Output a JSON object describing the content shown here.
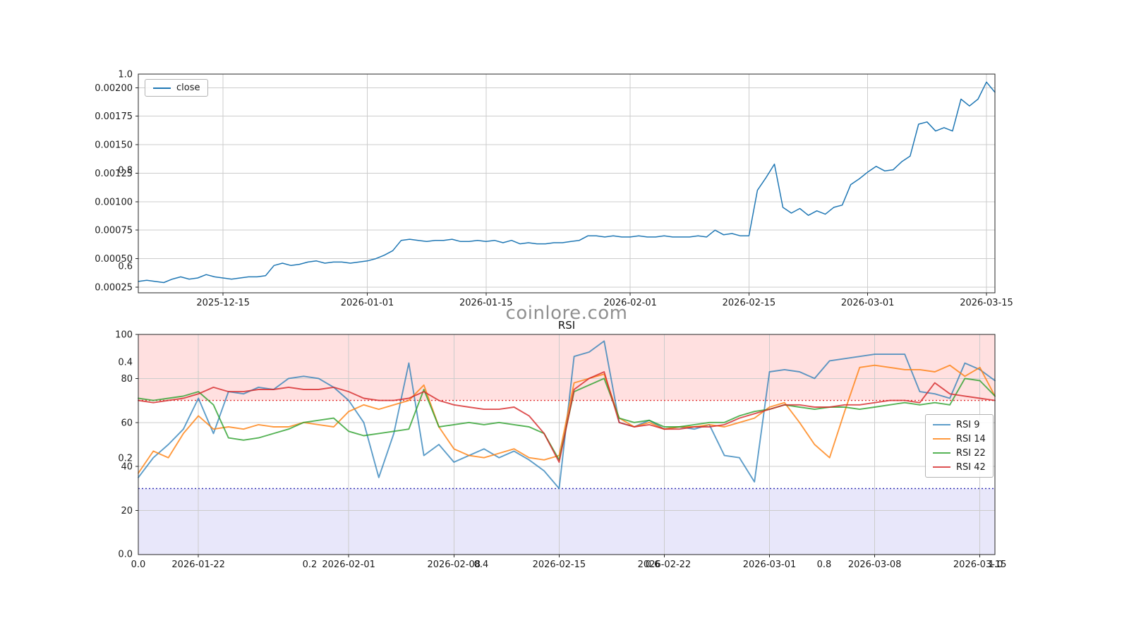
{
  "watermark": "coinlore.com",
  "ghost_axis": {
    "yticks": [
      "1.0",
      "0.8",
      "0.6",
      "0.4",
      "0.2",
      "0.0"
    ],
    "xticks": [
      "0.0",
      "0.2",
      "0.4",
      "0.6",
      "0.8",
      "1.0"
    ]
  },
  "chart_data": [
    {
      "id": "price",
      "type": "line",
      "title": "",
      "legend_position": "upper-left",
      "grid": true,
      "ylim": [
        0.0002,
        0.00212
      ],
      "x_start_date": "2025-12-05",
      "x_end_date": "2026-03-16",
      "yticks": [
        {
          "v": 0.00025,
          "label": "0.00025"
        },
        {
          "v": 0.0005,
          "label": "0.00050"
        },
        {
          "v": 0.00075,
          "label": "0.00075"
        },
        {
          "v": 0.001,
          "label": "0.00100"
        },
        {
          "v": 0.00125,
          "label": "0.00125"
        },
        {
          "v": 0.0015,
          "label": "0.00150"
        },
        {
          "v": 0.00175,
          "label": "0.00175"
        },
        {
          "v": 0.002,
          "label": "0.00200"
        }
      ],
      "xticks": [
        {
          "i": 10,
          "label": "2025-12-15"
        },
        {
          "i": 27,
          "label": "2026-01-01"
        },
        {
          "i": 41,
          "label": "2026-01-15"
        },
        {
          "i": 58,
          "label": "2026-02-01"
        },
        {
          "i": 72,
          "label": "2026-02-15"
        },
        {
          "i": 86,
          "label": "2026-03-01"
        },
        {
          "i": 100,
          "label": "2026-03-15"
        }
      ],
      "series": [
        {
          "name": "close",
          "color": "#1f77b4",
          "width": 1.5,
          "values": [
            0.0003,
            0.00031,
            0.0003,
            0.00029,
            0.00032,
            0.00034,
            0.00032,
            0.00033,
            0.00036,
            0.00034,
            0.00033,
            0.00032,
            0.00033,
            0.00034,
            0.00034,
            0.00035,
            0.00044,
            0.00046,
            0.00044,
            0.00045,
            0.00047,
            0.00048,
            0.00046,
            0.00047,
            0.00047,
            0.00046,
            0.00047,
            0.00048,
            0.0005,
            0.00053,
            0.00057,
            0.00066,
            0.00067,
            0.00066,
            0.00065,
            0.00066,
            0.00066,
            0.00067,
            0.00065,
            0.00065,
            0.00066,
            0.00065,
            0.00066,
            0.00064,
            0.00066,
            0.00063,
            0.00064,
            0.00063,
            0.00063,
            0.00064,
            0.00064,
            0.00065,
            0.00066,
            0.0007,
            0.0007,
            0.00069,
            0.0007,
            0.00069,
            0.00069,
            0.0007,
            0.00069,
            0.00069,
            0.0007,
            0.00069,
            0.00069,
            0.00069,
            0.0007,
            0.00069,
            0.00075,
            0.00071,
            0.00072,
            0.0007,
            0.0007,
            0.0011,
            0.00121,
            0.00133,
            0.00095,
            0.0009,
            0.00094,
            0.00088,
            0.00092,
            0.00089,
            0.00095,
            0.00097,
            0.00115,
            0.0012,
            0.00126,
            0.00131,
            0.00127,
            0.00128,
            0.00135,
            0.0014,
            0.00168,
            0.0017,
            0.00162,
            0.00165,
            0.00162,
            0.0019,
            0.00184,
            0.0019,
            0.00205,
            0.00196
          ]
        }
      ]
    },
    {
      "id": "rsi",
      "type": "line",
      "title": "RSI",
      "legend_position": "center-right",
      "grid": true,
      "ylim": [
        0,
        100
      ],
      "x_start_date": "2026-01-18",
      "x_end_date": "2026-03-16",
      "yticks": [
        {
          "v": 20,
          "label": "20"
        },
        {
          "v": 40,
          "label": "40"
        },
        {
          "v": 60,
          "label": "60"
        },
        {
          "v": 80,
          "label": "80"
        },
        {
          "v": 100,
          "label": "100"
        }
      ],
      "xticks": [
        {
          "i": 4,
          "label": "2026-01-22"
        },
        {
          "i": 14,
          "label": "2026-02-01"
        },
        {
          "i": 21,
          "label": "2026-02-08"
        },
        {
          "i": 28,
          "label": "2026-02-15"
        },
        {
          "i": 35,
          "label": "2026-02-22"
        },
        {
          "i": 42,
          "label": "2026-03-01"
        },
        {
          "i": 49,
          "label": "2026-03-08"
        },
        {
          "i": 56,
          "label": "2026-03-15"
        }
      ],
      "bands": [
        {
          "name": "overbought-zone",
          "from": 70,
          "to": 100,
          "color": "rgba(255,0,0,0.12)"
        },
        {
          "name": "oversold-zone",
          "from": 0,
          "to": 30,
          "color": "rgba(80,70,220,0.13)"
        }
      ],
      "hlines": [
        {
          "v": 70,
          "color": "#e03131",
          "dash": "2 3"
        },
        {
          "v": 30,
          "color": "#2b2bb0",
          "dash": "2 3"
        }
      ],
      "series": [
        {
          "name": "RSI 9",
          "color": "rgba(31,119,180,0.72)",
          "width": 1.9,
          "values": [
            35,
            44,
            50,
            57,
            71,
            55,
            74,
            73,
            76,
            75,
            80,
            81,
            80,
            76,
            70,
            60,
            35,
            55,
            87,
            45,
            50,
            42,
            45,
            48,
            44,
            47,
            43,
            38,
            30,
            90,
            92,
            97,
            60,
            58,
            61,
            57,
            58,
            57,
            59,
            45,
            44,
            33,
            83,
            84,
            83,
            80,
            88,
            89,
            90,
            91,
            91,
            91,
            74,
            73,
            71,
            87,
            84,
            79
          ]
        },
        {
          "name": "RSI 14",
          "color": "rgba(255,127,14,0.8)",
          "width": 1.9,
          "values": [
            37,
            47,
            44,
            55,
            63,
            57,
            58,
            57,
            59,
            58,
            58,
            60,
            59,
            58,
            65,
            68,
            66,
            68,
            70,
            77,
            58,
            48,
            45,
            44,
            46,
            48,
            44,
            43,
            45,
            78,
            80,
            82,
            62,
            58,
            60,
            57,
            58,
            58,
            59,
            58,
            60,
            62,
            67,
            69,
            60,
            50,
            44,
            65,
            85,
            86,
            85,
            84,
            84,
            83,
            86,
            81,
            85,
            72
          ]
        },
        {
          "name": "RSI 22",
          "color": "rgba(44,160,44,0.8)",
          "width": 1.9,
          "values": [
            71,
            70,
            71,
            72,
            74,
            68,
            53,
            52,
            53,
            55,
            57,
            60,
            61,
            62,
            56,
            54,
            55,
            56,
            57,
            75,
            58,
            59,
            60,
            59,
            60,
            59,
            58,
            55,
            43,
            74,
            77,
            80,
            62,
            60,
            61,
            58,
            58,
            59,
            60,
            60,
            63,
            65,
            66,
            68,
            67,
            66,
            67,
            67,
            66,
            67,
            68,
            69,
            68,
            69,
            68,
            80,
            79,
            72
          ]
        },
        {
          "name": "RSI 42",
          "color": "rgba(214,39,40,0.8)",
          "width": 1.9,
          "values": [
            70,
            69,
            70,
            71,
            73,
            76,
            74,
            74,
            75,
            75,
            76,
            75,
            75,
            76,
            74,
            71,
            70,
            70,
            71,
            74,
            70,
            68,
            67,
            66,
            66,
            67,
            63,
            55,
            42,
            75,
            80,
            83,
            60,
            58,
            59,
            57,
            57,
            58,
            58,
            59,
            62,
            64,
            66,
            68,
            68,
            67,
            67,
            68,
            68,
            69,
            70,
            70,
            69,
            78,
            73,
            72,
            71,
            70
          ]
        }
      ]
    }
  ]
}
